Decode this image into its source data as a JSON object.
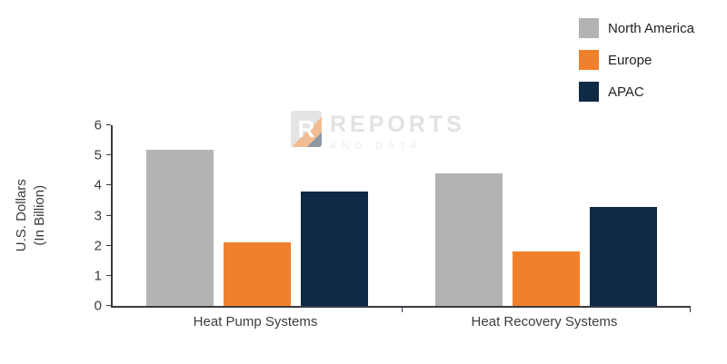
{
  "chart_data": {
    "type": "bar",
    "categories": [
      "Heat Pump Systems",
      "Heat Recovery Systems"
    ],
    "series": [
      {
        "name": "North America",
        "color": "#b3b3b3",
        "values": [
          5.2,
          4.4
        ]
      },
      {
        "name": "Europe",
        "color": "#f1802c",
        "values": [
          2.1,
          1.8
        ]
      },
      {
        "name": "APAC",
        "color": "#0e2a47",
        "values": [
          3.8,
          3.3
        ]
      }
    ],
    "title": "",
    "xlabel": "",
    "ylabel": "U.S. Dollars (In Billion)",
    "ylabel_line1": "U.S. Dollars",
    "ylabel_line2": "(In Billion)",
    "ylim": [
      0,
      6
    ],
    "yticks": [
      0,
      1,
      2,
      3,
      4,
      5,
      6
    ],
    "legend_position": "top-right",
    "grid": false
  },
  "watermark": {
    "logo_letter": "R",
    "text": "REPORTS",
    "subtext": "AND DATA"
  }
}
